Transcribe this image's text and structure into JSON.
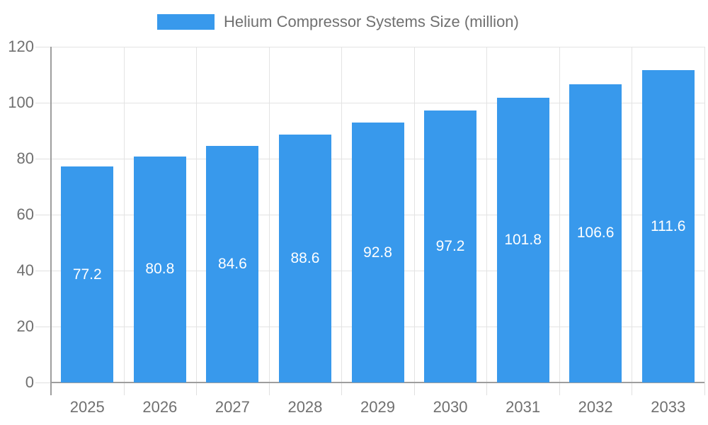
{
  "chart_data": {
    "type": "bar",
    "title": "Helium Compressor Systems Size (million)",
    "categories": [
      "2025",
      "2026",
      "2027",
      "2028",
      "2029",
      "2030",
      "2031",
      "2032",
      "2033"
    ],
    "series": [
      {
        "name": "Helium Compressor Systems Size (million)",
        "values": [
          77.2,
          80.8,
          84.6,
          88.6,
          92.8,
          97.2,
          101.8,
          106.6,
          111.6
        ]
      }
    ],
    "value_labels": [
      "77.2",
      "80.8",
      "84.6",
      "88.6",
      "92.8",
      "97.2",
      "101.8",
      "106.6",
      "111.6"
    ],
    "xlabel": "",
    "ylabel": "",
    "ylim": [
      0,
      120
    ],
    "yticks": [
      0,
      20,
      40,
      60,
      80,
      100,
      120
    ],
    "grid": "horizontal and vertical gridlines on",
    "legend_position": "top-center",
    "value_label_position": "inside-center"
  },
  "colors": {
    "bar": "#3899ec",
    "grid": "#e3e3e3",
    "tick": "#e0e0e0",
    "axis": "#9e9e9e",
    "label": "#707070",
    "value_label": "#ffffff",
    "background": "#ffffff"
  }
}
